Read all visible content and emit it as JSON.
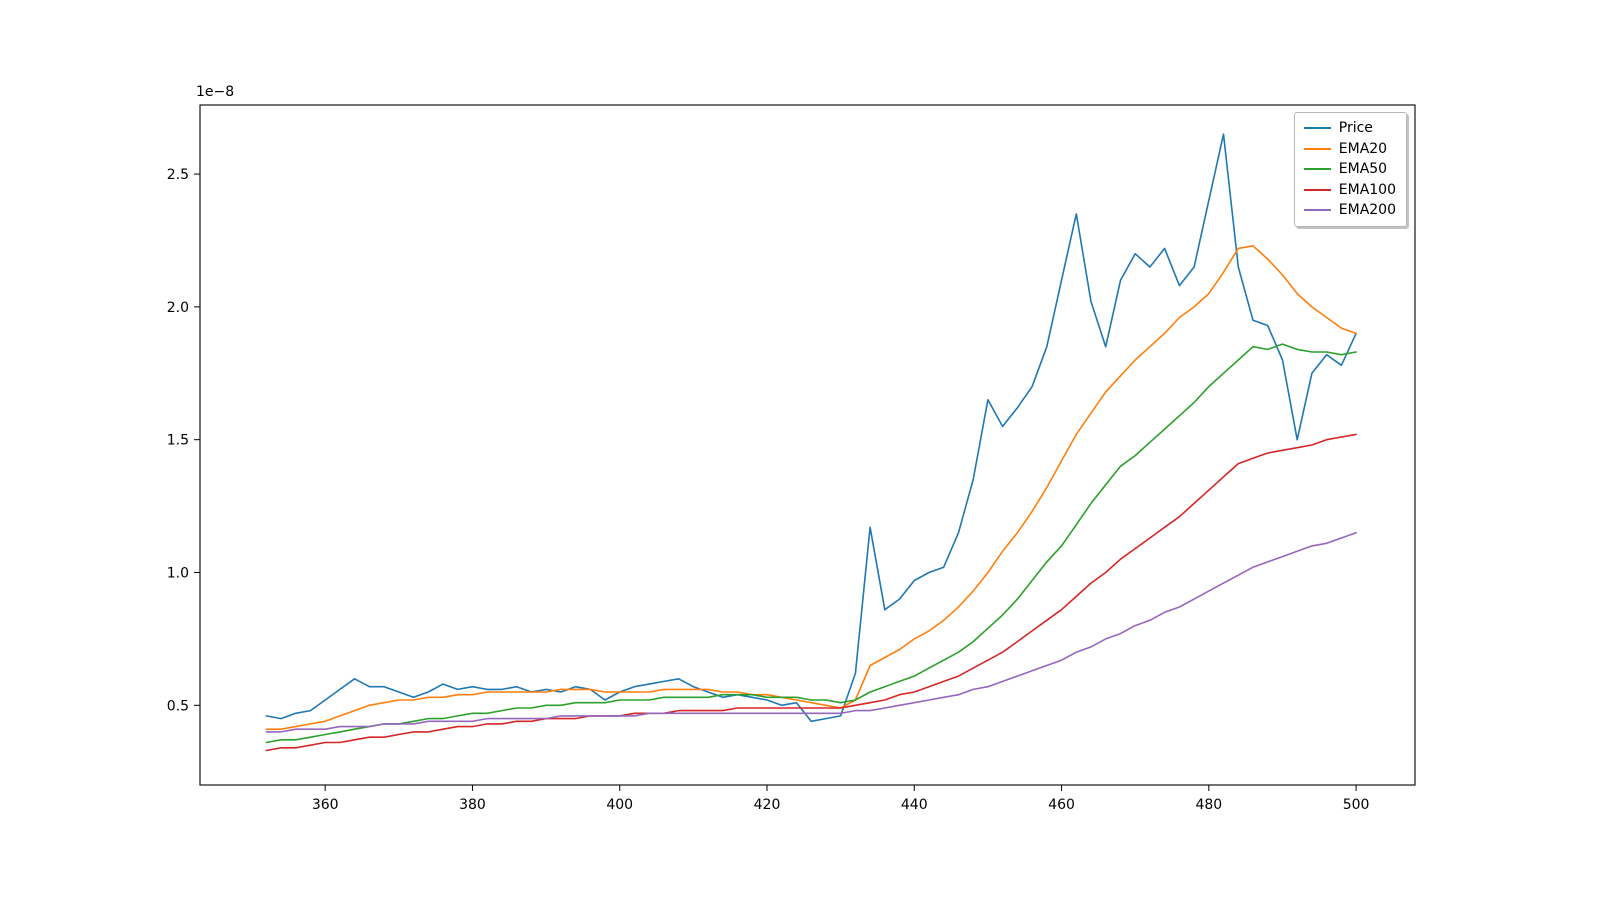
{
  "figure": {
    "background": "#ffffff"
  },
  "chart_data": {
    "type": "line",
    "title": "",
    "xlabel": "",
    "ylabel": "",
    "offset_text": "1e−8",
    "grid": false,
    "legend_position": "upper right",
    "xlim": [
      343,
      508
    ],
    "ylim": [
      0.2,
      2.76
    ],
    "xticks": [
      360,
      380,
      400,
      420,
      440,
      460,
      480,
      500
    ],
    "yticks": [
      0.5,
      1.0,
      1.5,
      2.0,
      2.5
    ],
    "ytick_labels": [
      "0.5",
      "1.0",
      "1.5",
      "2.0",
      "2.5"
    ],
    "x": [
      352,
      354,
      356,
      358,
      360,
      362,
      364,
      366,
      368,
      370,
      372,
      374,
      376,
      378,
      380,
      382,
      384,
      386,
      388,
      390,
      392,
      394,
      396,
      398,
      400,
      402,
      404,
      406,
      408,
      410,
      412,
      414,
      416,
      418,
      420,
      422,
      424,
      426,
      428,
      430,
      432,
      434,
      436,
      438,
      440,
      442,
      444,
      446,
      448,
      450,
      452,
      454,
      456,
      458,
      460,
      462,
      464,
      466,
      468,
      470,
      472,
      474,
      476,
      478,
      480,
      482,
      484,
      486,
      488,
      490,
      492,
      494,
      496,
      498,
      500
    ],
    "series": [
      {
        "name": "Price",
        "color": "#1f77b4",
        "values": [
          0.46,
          0.45,
          0.47,
          0.48,
          0.52,
          0.56,
          0.6,
          0.57,
          0.57,
          0.55,
          0.53,
          0.55,
          0.58,
          0.56,
          0.57,
          0.56,
          0.56,
          0.57,
          0.55,
          0.56,
          0.55,
          0.57,
          0.56,
          0.52,
          0.55,
          0.57,
          0.58,
          0.59,
          0.6,
          0.57,
          0.55,
          0.53,
          0.54,
          0.53,
          0.52,
          0.5,
          0.51,
          0.44,
          0.45,
          0.46,
          0.62,
          1.17,
          0.86,
          0.9,
          0.97,
          1.0,
          1.02,
          1.15,
          1.35,
          1.65,
          1.55,
          1.62,
          1.7,
          1.85,
          2.1,
          2.35,
          2.02,
          1.85,
          2.1,
          2.2,
          2.15,
          2.22,
          2.08,
          2.15,
          2.4,
          2.65,
          2.15,
          1.95,
          1.93,
          1.8,
          1.5,
          1.75,
          1.82,
          1.78,
          1.9
        ]
      },
      {
        "name": "EMA20",
        "color": "#ff7f0e",
        "values": [
          0.41,
          0.41,
          0.42,
          0.43,
          0.44,
          0.46,
          0.48,
          0.5,
          0.51,
          0.52,
          0.52,
          0.53,
          0.53,
          0.54,
          0.54,
          0.55,
          0.55,
          0.55,
          0.55,
          0.55,
          0.56,
          0.56,
          0.56,
          0.55,
          0.55,
          0.55,
          0.55,
          0.56,
          0.56,
          0.56,
          0.56,
          0.55,
          0.55,
          0.54,
          0.54,
          0.53,
          0.52,
          0.51,
          0.5,
          0.49,
          0.52,
          0.65,
          0.68,
          0.71,
          0.75,
          0.78,
          0.82,
          0.87,
          0.93,
          1.0,
          1.08,
          1.15,
          1.23,
          1.32,
          1.42,
          1.52,
          1.6,
          1.68,
          1.74,
          1.8,
          1.85,
          1.9,
          1.96,
          2.0,
          2.05,
          2.13,
          2.22,
          2.23,
          2.18,
          2.12,
          2.05,
          2.0,
          1.96,
          1.92,
          1.9
        ]
      },
      {
        "name": "EMA50",
        "color": "#2ca02c",
        "values": [
          0.36,
          0.37,
          0.37,
          0.38,
          0.39,
          0.4,
          0.41,
          0.42,
          0.43,
          0.43,
          0.44,
          0.45,
          0.45,
          0.46,
          0.47,
          0.47,
          0.48,
          0.49,
          0.49,
          0.5,
          0.5,
          0.51,
          0.51,
          0.51,
          0.52,
          0.52,
          0.52,
          0.53,
          0.53,
          0.53,
          0.53,
          0.54,
          0.54,
          0.54,
          0.53,
          0.53,
          0.53,
          0.52,
          0.52,
          0.51,
          0.52,
          0.55,
          0.57,
          0.59,
          0.61,
          0.64,
          0.67,
          0.7,
          0.74,
          0.79,
          0.84,
          0.9,
          0.97,
          1.04,
          1.1,
          1.18,
          1.26,
          1.33,
          1.4,
          1.44,
          1.49,
          1.54,
          1.59,
          1.64,
          1.7,
          1.75,
          1.8,
          1.85,
          1.84,
          1.86,
          1.84,
          1.83,
          1.83,
          1.82,
          1.83
        ]
      },
      {
        "name": "EMA100",
        "color": "#d62728",
        "values": [
          0.33,
          0.34,
          0.34,
          0.35,
          0.36,
          0.36,
          0.37,
          0.38,
          0.38,
          0.39,
          0.4,
          0.4,
          0.41,
          0.42,
          0.42,
          0.43,
          0.43,
          0.44,
          0.44,
          0.45,
          0.45,
          0.45,
          0.46,
          0.46,
          0.46,
          0.47,
          0.47,
          0.47,
          0.48,
          0.48,
          0.48,
          0.48,
          0.49,
          0.49,
          0.49,
          0.49,
          0.49,
          0.49,
          0.49,
          0.49,
          0.5,
          0.51,
          0.52,
          0.54,
          0.55,
          0.57,
          0.59,
          0.61,
          0.64,
          0.67,
          0.7,
          0.74,
          0.78,
          0.82,
          0.86,
          0.91,
          0.96,
          1.0,
          1.05,
          1.09,
          1.13,
          1.17,
          1.21,
          1.26,
          1.31,
          1.36,
          1.41,
          1.43,
          1.45,
          1.46,
          1.47,
          1.48,
          1.5,
          1.51,
          1.52
        ]
      },
      {
        "name": "EMA200",
        "color": "#9467bd",
        "values": [
          0.4,
          0.4,
          0.41,
          0.41,
          0.41,
          0.42,
          0.42,
          0.42,
          0.43,
          0.43,
          0.43,
          0.44,
          0.44,
          0.44,
          0.44,
          0.45,
          0.45,
          0.45,
          0.45,
          0.45,
          0.46,
          0.46,
          0.46,
          0.46,
          0.46,
          0.46,
          0.47,
          0.47,
          0.47,
          0.47,
          0.47,
          0.47,
          0.47,
          0.47,
          0.47,
          0.47,
          0.47,
          0.47,
          0.47,
          0.47,
          0.48,
          0.48,
          0.49,
          0.5,
          0.51,
          0.52,
          0.53,
          0.54,
          0.56,
          0.57,
          0.59,
          0.61,
          0.63,
          0.65,
          0.67,
          0.7,
          0.72,
          0.75,
          0.77,
          0.8,
          0.82,
          0.85,
          0.87,
          0.9,
          0.93,
          0.96,
          0.99,
          1.02,
          1.04,
          1.06,
          1.08,
          1.1,
          1.11,
          1.13,
          1.15
        ]
      }
    ]
  }
}
